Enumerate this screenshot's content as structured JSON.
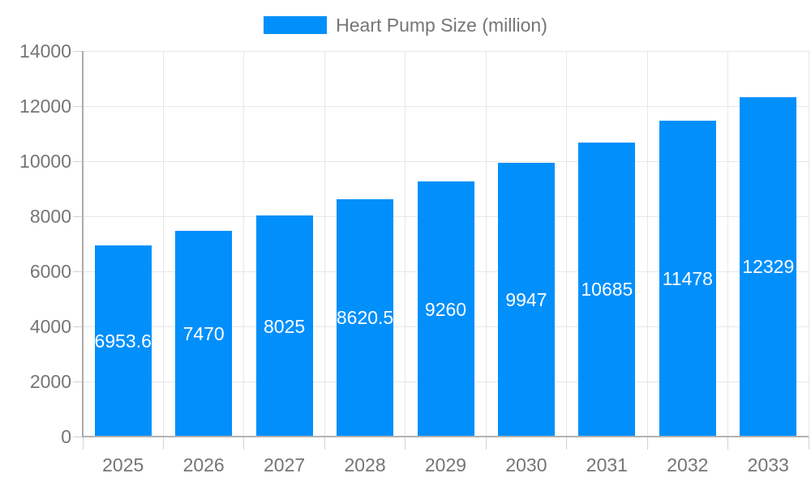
{
  "chart_data": {
    "type": "bar",
    "title": "Heart Pump Size (million)",
    "legend": "Heart Pump Size (million)",
    "legend_position": "top-center",
    "categories": [
      "2025",
      "2026",
      "2027",
      "2028",
      "2029",
      "2030",
      "2031",
      "2032",
      "2033"
    ],
    "values": [
      6953.6,
      7470,
      8025,
      8620.5,
      9260,
      9947,
      10685,
      11478,
      12329
    ],
    "value_labels": [
      "6953.6",
      "7470",
      "8025",
      "8620.5",
      "9260",
      "9947",
      "10685",
      "11478",
      "12329"
    ],
    "xlabel": "",
    "ylabel": "",
    "ylim": [
      0,
      14000
    ],
    "ytick_step": 2000,
    "ytick_labels": [
      "0",
      "2000",
      "4000",
      "6000",
      "8000",
      "10000",
      "12000",
      "14000"
    ],
    "grid": true,
    "colors": {
      "bar": "#008ffb",
      "value_label": "#ffffff",
      "axis_text": "#757575",
      "legend_text": "#757575",
      "gridline": "#e7e7e7",
      "axis_line": "#b3b3b3",
      "tick_line": "#d2d2d2"
    }
  }
}
